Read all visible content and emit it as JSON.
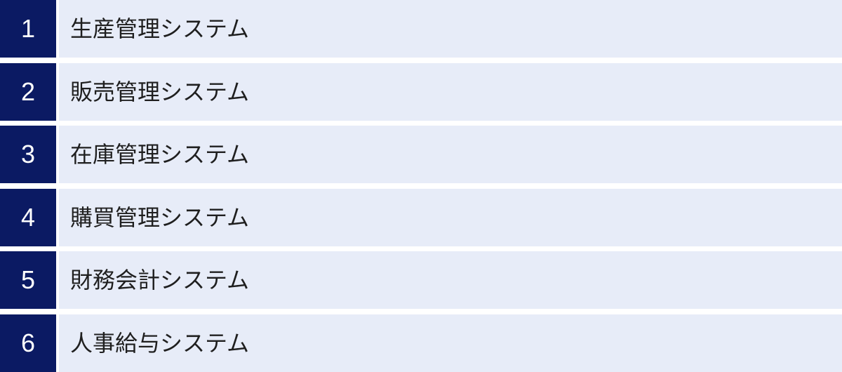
{
  "colors": {
    "page_bg": "#ffffff",
    "badge_bg": "#0b1a63",
    "badge_text": "#ffffff",
    "divider_bg": "#ffffff",
    "row_bg": "#e7ecf8",
    "row_text": "#1f1f1f"
  },
  "list": {
    "items": [
      {
        "number": "1",
        "label": "生産管理システム"
      },
      {
        "number": "2",
        "label": "販売管理システム"
      },
      {
        "number": "3",
        "label": "在庫管理システム"
      },
      {
        "number": "4",
        "label": "購買管理システム"
      },
      {
        "number": "5",
        "label": "財務会計システム"
      },
      {
        "number": "6",
        "label": "人事給与システム"
      }
    ]
  }
}
